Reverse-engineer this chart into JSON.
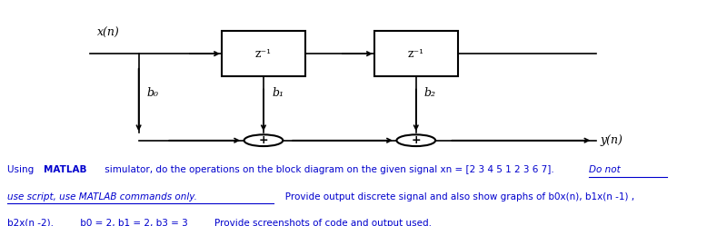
{
  "bg_color": "#ffffff",
  "diagram": {
    "x_label": "x(n)",
    "y_label": "y(n)",
    "box1_label": "z⁻¹",
    "box2_label": "z⁻¹",
    "b0_label": "b₀",
    "b1_label": "b₁",
    "b2_label": "b₂",
    "plus": "+"
  },
  "figsize": [
    7.89,
    2.49
  ],
  "dpi": 100,
  "blue": "#0000cd"
}
